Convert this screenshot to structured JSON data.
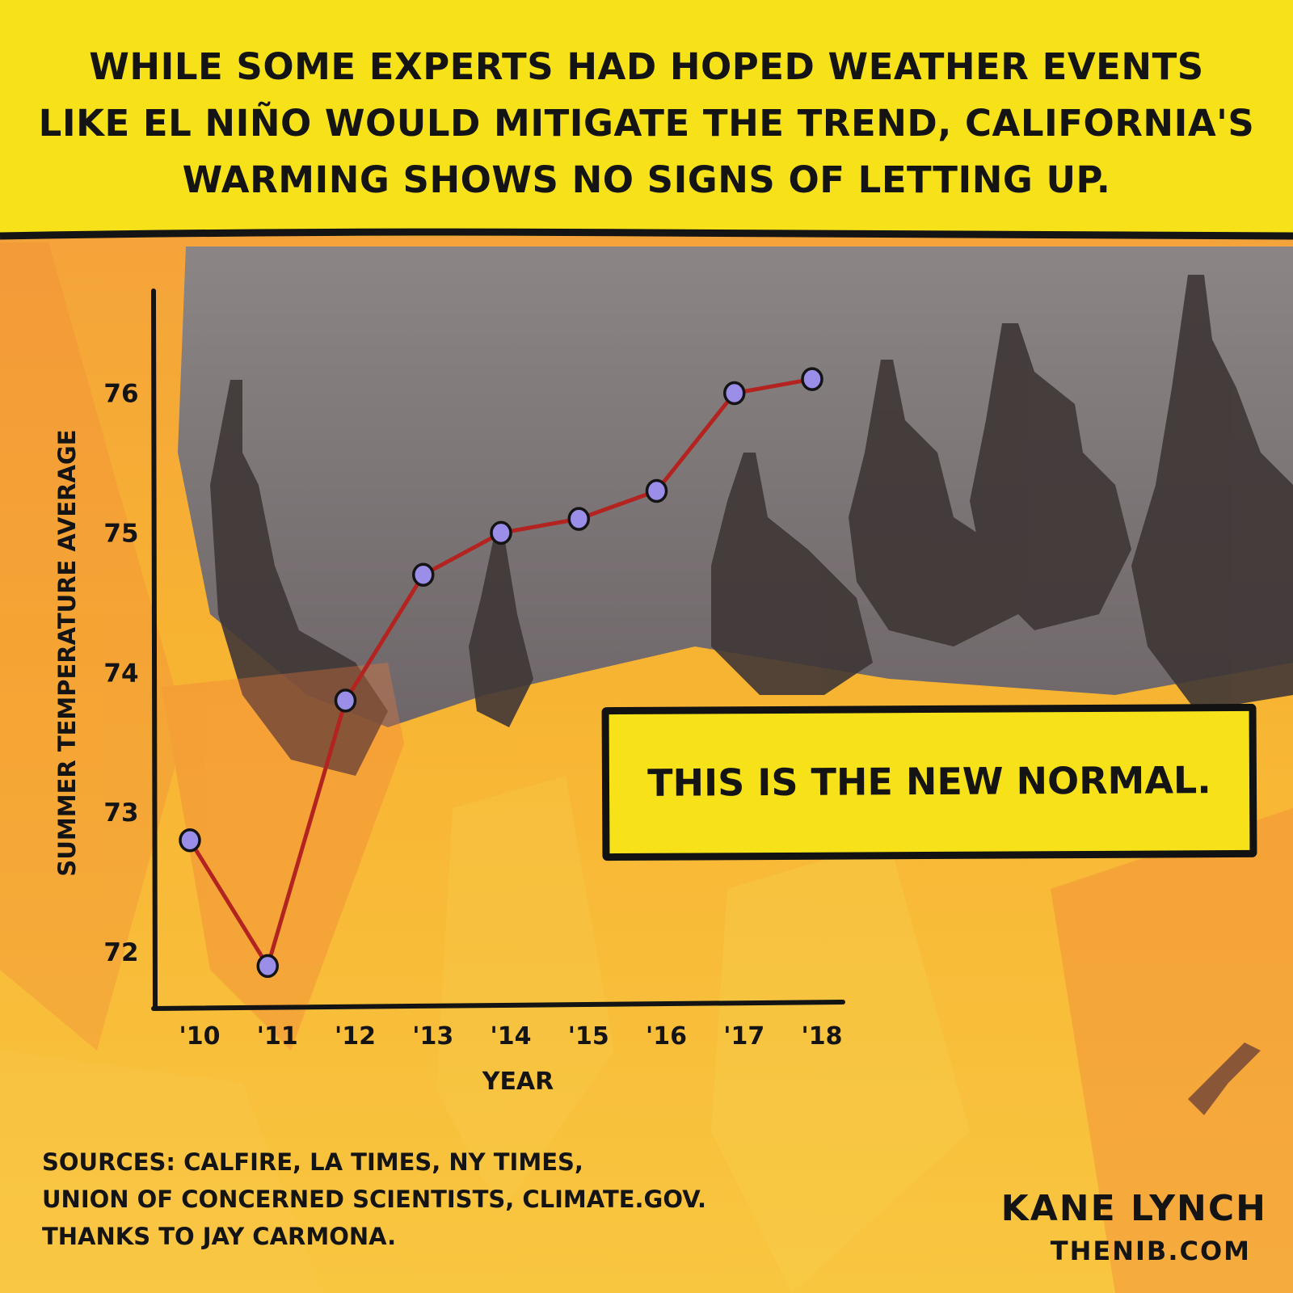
{
  "header": {
    "lines": [
      "WHILE SOME EXPERTS HAD HOPED WEATHER EVENTS",
      "LIKE EL NIÑO WOULD MITIGATE THE TREND, CALIFORNIA'S",
      "WARMING SHOWS NO SIGNS OF LETTING UP."
    ]
  },
  "callout": "THIS IS THE NEW NORMAL.",
  "sources": [
    "SOURCES: CALFIRE, LA TIMES, NY TIMES,",
    "UNION OF CONCERNED SCIENTISTS, CLIMATE.GOV.",
    "THANKS TO JAY CARMONA."
  ],
  "credit": {
    "name": "KANE LYNCH",
    "site": "THENIB.COM"
  },
  "colors": {
    "header_bg": "#f7e21a",
    "line": "#b32420",
    "point": "#9b8ee8",
    "ink": "#141414"
  },
  "chart_data": {
    "type": "line",
    "title": "",
    "xlabel": "YEAR",
    "ylabel": "SUMMER TEMPERATURE AVERAGE",
    "categories": [
      "'10",
      "'11",
      "'12",
      "'13",
      "'14",
      "'15",
      "'16",
      "'17",
      "'18"
    ],
    "values": [
      72.8,
      71.9,
      73.8,
      74.7,
      75.0,
      75.1,
      75.3,
      76.0,
      76.1
    ],
    "yticks": [
      72,
      73,
      74,
      75,
      76
    ],
    "ylim": [
      71.7,
      76.5
    ],
    "grid": false,
    "legend": "none"
  }
}
